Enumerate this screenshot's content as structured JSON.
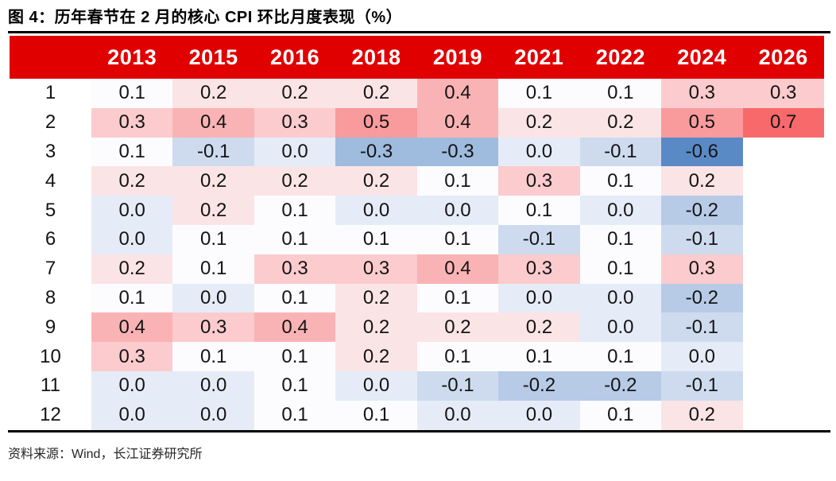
{
  "title": "图 4：历年春节在 2 月的核心 CPI 环比月度表现（%）",
  "source": "资料来源：Wind，长江证券研究所",
  "colors": {
    "header_bg": "#E00000",
    "header_text": "#FFFFFF",
    "rule": "#000000",
    "value_text": "#141414",
    "scale": {
      "min_value": -0.6,
      "mid_value": 0.1,
      "max_value": 0.7,
      "min_color": "#5A8AC6",
      "mid_color": "#FCFCFF",
      "max_color": "#F8696B"
    }
  },
  "chart_data": {
    "type": "heatmap",
    "title": "图 4：历年春节在 2 月的核心 CPI 环比月度表现（%）",
    "columns": [
      "2013",
      "2015",
      "2016",
      "2018",
      "2019",
      "2021",
      "2022",
      "2024",
      "2026"
    ],
    "row_labels": [
      "1",
      "2",
      "3",
      "4",
      "5",
      "6",
      "7",
      "8",
      "9",
      "10",
      "11",
      "12"
    ],
    "rows": [
      [
        0.1,
        0.2,
        0.2,
        0.2,
        0.4,
        0.1,
        0.1,
        0.3,
        0.3
      ],
      [
        0.3,
        0.4,
        0.3,
        0.5,
        0.4,
        0.2,
        0.2,
        0.5,
        0.7
      ],
      [
        0.1,
        -0.1,
        0.0,
        -0.3,
        -0.3,
        0.0,
        -0.1,
        -0.6,
        null
      ],
      [
        0.2,
        0.2,
        0.2,
        0.2,
        0.1,
        0.3,
        0.1,
        0.2,
        null
      ],
      [
        0.0,
        0.2,
        0.1,
        0.0,
        0.0,
        0.1,
        0.0,
        -0.2,
        null
      ],
      [
        0.0,
        0.1,
        0.1,
        0.1,
        0.1,
        -0.1,
        0.1,
        -0.1,
        null
      ],
      [
        0.2,
        0.1,
        0.3,
        0.3,
        0.4,
        0.3,
        0.1,
        0.3,
        null
      ],
      [
        0.1,
        0.0,
        0.1,
        0.2,
        0.1,
        0.0,
        0.0,
        -0.2,
        null
      ],
      [
        0.4,
        0.3,
        0.4,
        0.2,
        0.2,
        0.2,
        0.0,
        -0.1,
        null
      ],
      [
        0.3,
        0.1,
        0.1,
        0.2,
        0.1,
        0.1,
        0.1,
        0.0,
        null
      ],
      [
        0.0,
        0.0,
        0.1,
        0.0,
        -0.1,
        -0.2,
        -0.2,
        -0.1,
        null
      ],
      [
        0.0,
        0.0,
        0.1,
        0.1,
        0.0,
        0.0,
        0.1,
        0.2,
        null
      ]
    ],
    "value_unit": "%",
    "legend_position": "none",
    "grid": false
  }
}
